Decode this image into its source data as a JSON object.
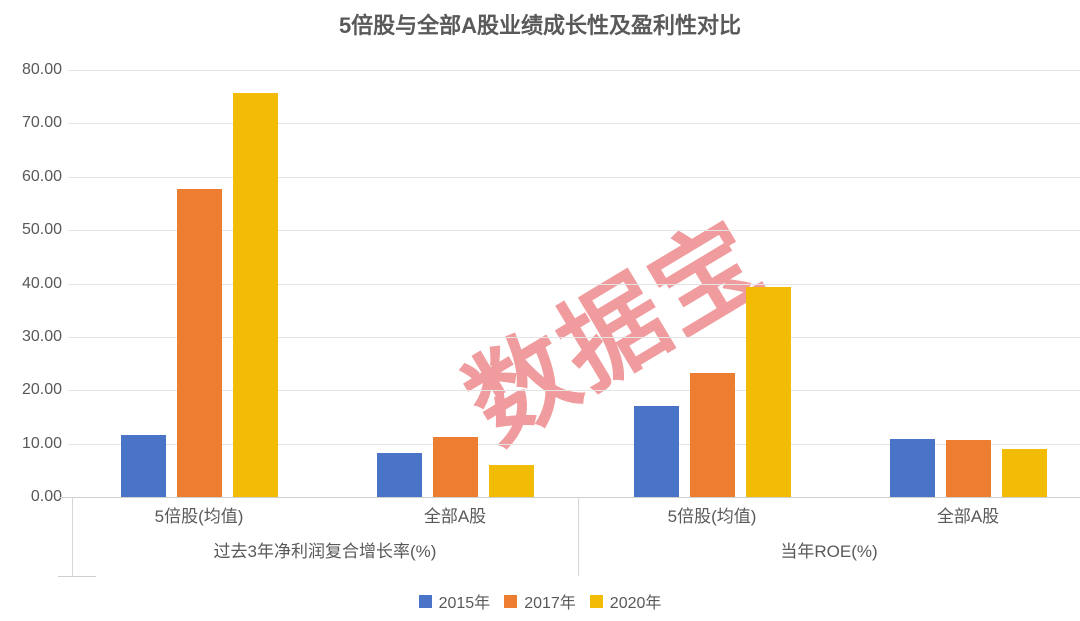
{
  "title": "5倍股与全部A股业绩成长性及盈利性对比",
  "watermark": "数据宝",
  "colors": {
    "title_text": "#595959",
    "axis_text": "#595959",
    "gridline": "#e4e4e4",
    "axis_line": "#cfcfcf",
    "watermark": "#ee8a8c",
    "series": [
      "#4a74c8",
      "#ed7d31",
      "#f2bb05"
    ]
  },
  "chart_data": {
    "type": "bar",
    "title": "5倍股与全部A股业绩成长性及盈利性对比",
    "ylim": [
      0,
      80
    ],
    "y_step": 10,
    "y_tick_labels": [
      "80.00",
      "70.00",
      "60.00",
      "50.00",
      "40.00",
      "30.00",
      "20.00",
      "10.00",
      "0.00"
    ],
    "grid": true,
    "legend_position": "bottom",
    "series": [
      {
        "name": "2015年",
        "color": "#4a74c8"
      },
      {
        "name": "2017年",
        "color": "#ed7d31"
      },
      {
        "name": "2020年",
        "color": "#f2bb05"
      }
    ],
    "panels": [
      {
        "label": "过去3年净利润复合增长率(%)",
        "groups": [
          {
            "label": "5倍股(均值)",
            "values": [
              11.6,
              57.7,
              75.7
            ]
          },
          {
            "label": "全部A股",
            "values": [
              8.2,
              11.2,
              6.0
            ]
          }
        ]
      },
      {
        "label": "当年ROE(%)",
        "groups": [
          {
            "label": "5倍股(均值)",
            "values": [
              17.1,
              23.3,
              39.4
            ]
          },
          {
            "label": "全部A股",
            "values": [
              10.9,
              10.7,
              8.9
            ]
          }
        ]
      }
    ]
  }
}
